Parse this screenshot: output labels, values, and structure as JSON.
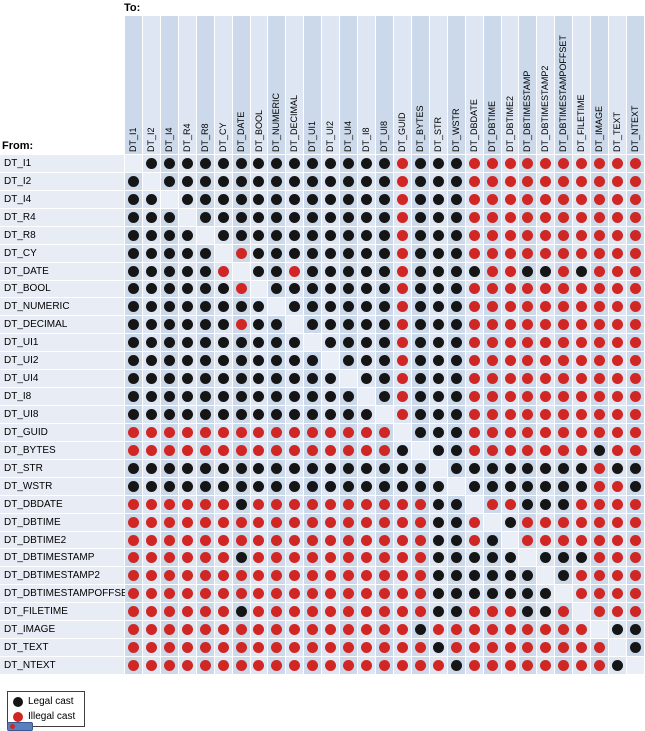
{
  "axes": {
    "to_label": "To:",
    "from_label": "From:"
  },
  "legend": {
    "items": [
      {
        "label": "Legal cast",
        "color": "#151515"
      },
      {
        "label": "Illegal cast",
        "color": "#d02724"
      }
    ]
  },
  "colors": {
    "stripe_dark": "#cbd9ea",
    "stripe_light": "#dde6f2",
    "diagonal": "#e9eef7",
    "row_label_bg": "#e8ecf5",
    "legal_dot": "#151515",
    "illegal_dot": "#d02724"
  },
  "chart_data": {
    "type": "heatmap",
    "x_axis_label": "To:",
    "y_axis_label": "From:",
    "legend": {
      "black_dot": "Legal cast",
      "red_dot": "Illegal cast"
    },
    "cell_encoding": {
      "L": "Legal cast (black dot)",
      "I": "Illegal cast (red dot)",
      "-": "no dot (same type diagonal)"
    },
    "categories": [
      "DT_I1",
      "DT_I2",
      "DT_I4",
      "DT_R4",
      "DT_R8",
      "DT_CY",
      "DT_DATE",
      "DT_BOOL",
      "DT_NUMERIC",
      "DT_DECIMAL",
      "DT_UI1",
      "DT_UI2",
      "DT_UI4",
      "DT_I8",
      "DT_UI8",
      "DT_GUID",
      "DT_BYTES",
      "DT_STR",
      "DT_WSTR",
      "DT_DBDATE",
      "DT_DBTIME",
      "DT_DBTIME2",
      "DT_DBTIMESTAMP",
      "DT_DBTIMESTAMP2",
      "DT_DBTIMESTAMPOFFSET",
      "DT_FILETIME",
      "DT_IMAGE",
      "DT_TEXT",
      "DT_NTEXT"
    ],
    "matrix": [
      "-LLLLLLLLLLLLLLILLLIIIIIIIIII",
      "L-LLLLLLLLLLLLLILLLIIIIIIIIII",
      "LL-LLLLLLLLLLLLILLLIIIIIIIIII",
      "LLL-LLLLLLLLLLLILLLIIIIIIIIII",
      "LLLL-LLLLLLLLLLILLLIIIIIIIIII",
      "LLLLL-ILLLLLLLLILLLIIIIIIIIII",
      "LLLLLI-LLILLLLLILLLLIILLILIII",
      "LLLLLLI-LLLLLLLILLLIIIIIIIIII",
      "LLLLLLLL-LLLLLLILLLIIIIIIIIII",
      "LLLLLLILL-LLLLLILLLIIIIIIIIII",
      "LLLLLLLLLL-LLLLILLLIIIIIIIIII",
      "LLLLLLLLLLL-LLLILLLIIIIIIIIII",
      "LLLLLLLLLLLL-LLILLLIIIIIIIIII",
      "LLLLLLLLLLLLL-LILLLIIIIIIIIII",
      "LLLLLLLLLLLLLL-ILLLIIIIIIIIII",
      "IIIIIIIIIIIIIII-LLLIIIIIIIIII",
      "IIIIIIIIIIIIIIIL-LLIIIIIIILII",
      "LLLLLLLLLLLLLLLLL-LLLLLLLLILL",
      "LLLLLLLLLLLLLLLLLL-LLLLLLLIIL",
      "IIIIIILIIIIIIIIIILL-IILLLIIII",
      "IIIIIIIIIIIIIIIIILLI-LIIIIIII",
      "IIIIIIIIIIIIIIIIILLIL-IIIIIII",
      "IIIIIILIIIIIIIIIILLLLL-LLLIII",
      "IIIIIIIIIIIIIIIIILLLLLL-LIIII",
      "IIIIIIIIIIIIIIIIILLLLLLL-IIII",
      "IIIIIILIIIIIIIIIILLIIILLI-III",
      "IIIIIIIIIIIIIIIILIIIIIIIII-LL",
      "IIIIIIIIIIIIIIIIILIIIIIIIII-L",
      "IIIIIIIIIIIIIIIIIILIIIIIIIIL-"
    ]
  }
}
